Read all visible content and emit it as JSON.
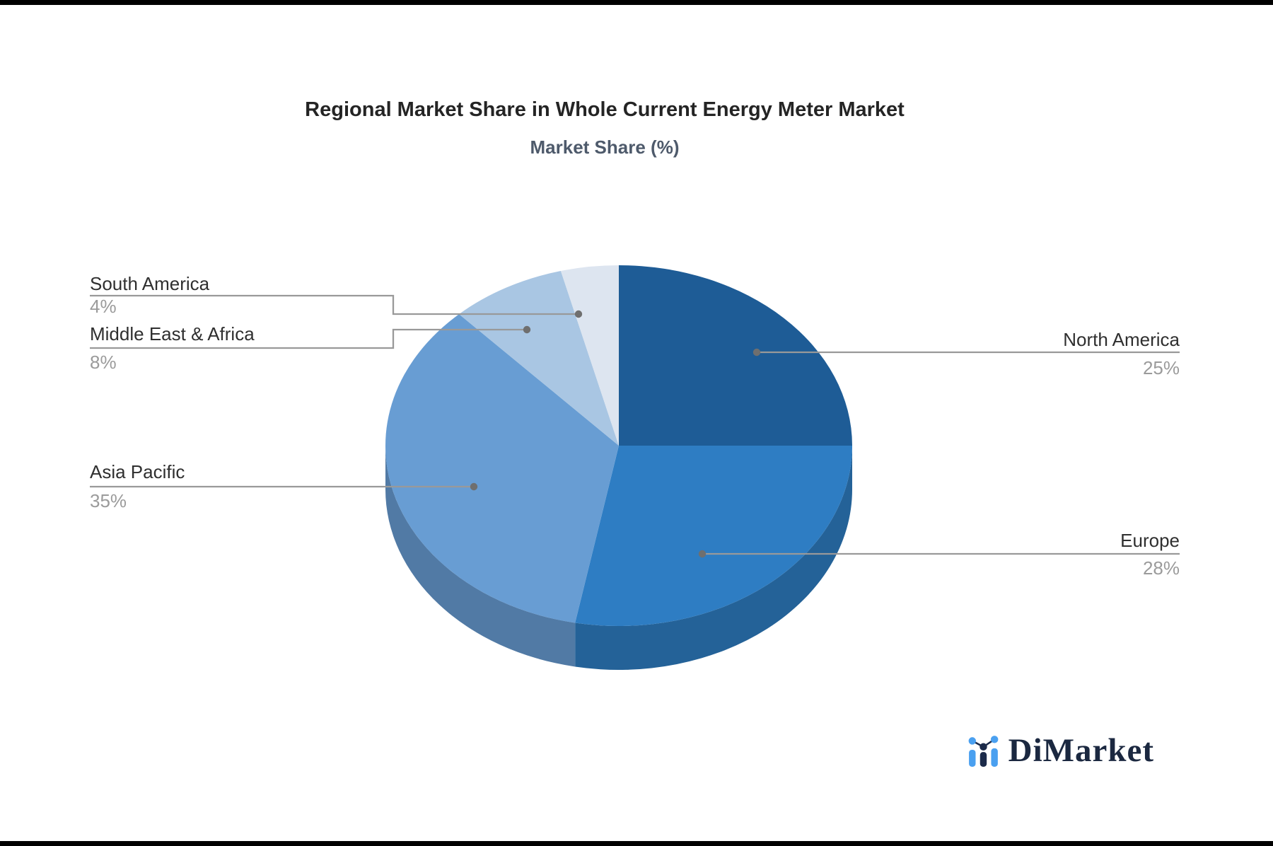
{
  "page": {
    "title": "Regional Market Share in Whole Current Energy Meter Market",
    "subtitle": "Market Share (%)"
  },
  "chart_data": {
    "type": "pie",
    "style": "3d",
    "title": "Regional Market Share in Whole Current Energy Meter Market",
    "subtitle": "Market Share (%)",
    "unit": "percent",
    "start_angle_deg": 0,
    "direction": "clockwise",
    "labels": [
      "North America",
      "Europe",
      "Asia Pacific",
      "Middle East & Africa",
      "South America"
    ],
    "values": [
      25,
      28,
      35,
      8,
      4
    ],
    "value_labels": [
      "25%",
      "28%",
      "35%",
      "8%",
      "4%"
    ],
    "colors": [
      "#1e5c96",
      "#2e7dc3",
      "#689dd3",
      "#a9c6e3",
      "#dde5f0"
    ],
    "callout_line_color": "#999999",
    "callout_dot_color": "#6f6f6f",
    "legend_position": "callout-labels"
  },
  "branding": {
    "logo_text": "DiMarket",
    "logo_icon": "bar-line-chart-icon",
    "logo_text_color": "#1b2840",
    "logo_accent_color": "#4aa0f0",
    "logo_dark_color": "#1c2b4a"
  }
}
